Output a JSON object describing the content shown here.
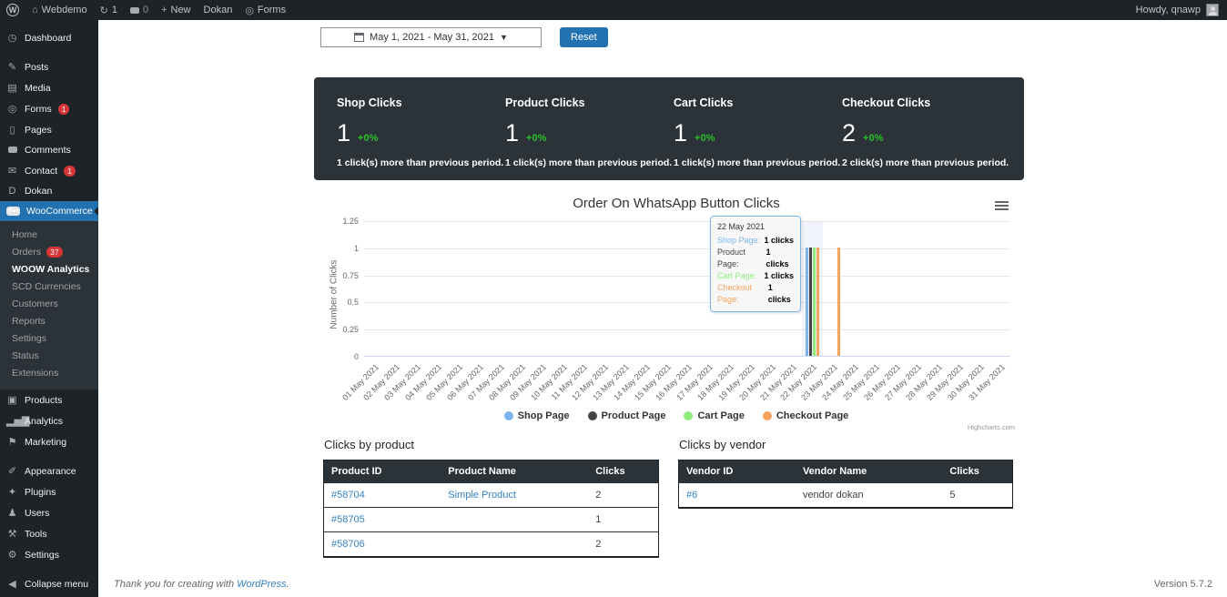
{
  "admin_bar": {
    "site_name": "Webdemo",
    "updates_count": "1",
    "comments_count": "0",
    "new_label": "New",
    "dokan_label": "Dokan",
    "forms_label": "Forms",
    "howdy": "Howdy, qnawp"
  },
  "sidebar": {
    "icon_glyphs": {
      "dashboard": "◷",
      "posts": "✎",
      "media": "▤",
      "forms": "◎",
      "pages": "▯",
      "comments": "",
      "contact": "✉",
      "dokan": "D",
      "woocommerce": "Woo",
      "products": "▣",
      "analytics": "▂▅▇",
      "marketing": "⚑",
      "appearance": "✐",
      "plugins": "✦",
      "users": "♟",
      "tools": "⚒",
      "settings": "⚙",
      "collapse": "◀"
    },
    "items": [
      {
        "id": "dashboard",
        "label": "Dashboard",
        "icon": "dashboard-icon"
      },
      {
        "id": "posts",
        "label": "Posts",
        "icon": "pushpin-icon",
        "gap_before": true
      },
      {
        "id": "media",
        "label": "Media",
        "icon": "media-icon"
      },
      {
        "id": "forms",
        "label": "Forms",
        "icon": "forms-icon",
        "badge": "1"
      },
      {
        "id": "pages",
        "label": "Pages",
        "icon": "pages-icon"
      },
      {
        "id": "comments",
        "label": "Comments",
        "icon": "comment-bubble-icon"
      },
      {
        "id": "contact",
        "label": "Contact",
        "icon": "mail-icon",
        "badge": "1"
      },
      {
        "id": "dokan",
        "label": "Dokan",
        "icon": "dokan-icon"
      },
      {
        "id": "woocommerce",
        "label": "WooCommerce",
        "icon": "woocommerce-icon",
        "active": true
      },
      {
        "id": "products",
        "label": "Products",
        "icon": "products-icon"
      },
      {
        "id": "analytics",
        "label": "Analytics",
        "icon": "bar-chart-icon"
      },
      {
        "id": "marketing",
        "label": "Marketing",
        "icon": "megaphone-icon"
      },
      {
        "id": "appearance",
        "label": "Appearance",
        "icon": "brush-icon",
        "gap_before": true
      },
      {
        "id": "plugins",
        "label": "Plugins",
        "icon": "plugin-icon"
      },
      {
        "id": "users",
        "label": "Users",
        "icon": "user-icon"
      },
      {
        "id": "tools",
        "label": "Tools",
        "icon": "tools-icon"
      },
      {
        "id": "settings",
        "label": "Settings",
        "icon": "gear-icon"
      },
      {
        "id": "collapse",
        "label": "Collapse menu",
        "icon": "collapse-arrow-icon",
        "gap_before": true
      }
    ],
    "submenu": [
      {
        "id": "home",
        "label": "Home"
      },
      {
        "id": "orders",
        "label": "Orders",
        "badge": "37"
      },
      {
        "id": "woow-analytics",
        "label": "WOOW Analytics",
        "current": true
      },
      {
        "id": "scd-currencies",
        "label": "SCD Currencies"
      },
      {
        "id": "customers",
        "label": "Customers"
      },
      {
        "id": "reports",
        "label": "Reports"
      },
      {
        "id": "settings",
        "label": "Settings"
      },
      {
        "id": "status",
        "label": "Status"
      },
      {
        "id": "extensions",
        "label": "Extensions"
      }
    ]
  },
  "toolbar": {
    "date_range": "May 1, 2021 - May 31, 2021",
    "reset_label": "Reset"
  },
  "stats": [
    {
      "label": "Shop Clicks",
      "value": "1",
      "delta": "+0%",
      "note": "1 click(s) more than previous period."
    },
    {
      "label": "Product Clicks",
      "value": "1",
      "delta": "+0%",
      "note": "1 click(s) more than previous period."
    },
    {
      "label": "Cart Clicks",
      "value": "1",
      "delta": "+0%",
      "note": "1 click(s) more than previous period."
    },
    {
      "label": "Checkout Clicks",
      "value": "2",
      "delta": "+0%",
      "note": "2 click(s) more than previous period."
    }
  ],
  "chart_data": {
    "type": "bar",
    "title": "Order On WhatsApp Button Clicks",
    "xlabel": "",
    "ylabel": "Number of Clicks",
    "ylim": [
      0,
      1.25
    ],
    "yticks": [
      0,
      0.25,
      0.5,
      0.75,
      1,
      1.25
    ],
    "grid": true,
    "legend_position": "bottom",
    "categories": [
      "01 May 2021",
      "02 May 2021",
      "03 May 2021",
      "04 May 2021",
      "05 May 2021",
      "06 May 2021",
      "07 May 2021",
      "08 May 2021",
      "09 May 2021",
      "10 May 2021",
      "11 May 2021",
      "12 May 2021",
      "13 May 2021",
      "14 May 2021",
      "15 May 2021",
      "16 May 2021",
      "17 May 2021",
      "18 May 2021",
      "19 May 2021",
      "20 May 2021",
      "21 May 2021",
      "22 May 2021",
      "23 May 2021",
      "24 May 2021",
      "25 May 2021",
      "26 May 2021",
      "27 May 2021",
      "28 May 2021",
      "29 May 2021",
      "30 May 2021",
      "31 May 2021"
    ],
    "series": [
      {
        "name": "Shop Page",
        "color": "#7cb5ec",
        "values": [
          0,
          0,
          0,
          0,
          0,
          0,
          0,
          0,
          0,
          0,
          0,
          0,
          0,
          0,
          0,
          0,
          0,
          0,
          0,
          0,
          0,
          1,
          0,
          0,
          0,
          0,
          0,
          0,
          0,
          0,
          0
        ]
      },
      {
        "name": "Product Page",
        "color": "#434348",
        "values": [
          0,
          0,
          0,
          0,
          0,
          0,
          0,
          0,
          0,
          0,
          0,
          0,
          0,
          0,
          0,
          0,
          0,
          0,
          0,
          0,
          0,
          1,
          0,
          0,
          0,
          0,
          0,
          0,
          0,
          0,
          0
        ]
      },
      {
        "name": "Cart Page",
        "color": "#90ed7d",
        "values": [
          0,
          0,
          0,
          0,
          0,
          0,
          0,
          0,
          0,
          0,
          0,
          0,
          0,
          0,
          0,
          0,
          0,
          0,
          0,
          0,
          0,
          1,
          0,
          0,
          0,
          0,
          0,
          0,
          0,
          0,
          0
        ]
      },
      {
        "name": "Checkout Page",
        "color": "#f7a35c",
        "values": [
          0,
          0,
          0,
          0,
          0,
          0,
          0,
          0,
          0,
          0,
          0,
          0,
          0,
          0,
          0,
          0,
          0,
          0,
          0,
          0,
          0,
          1,
          1,
          0,
          0,
          0,
          0,
          0,
          0,
          0,
          0
        ]
      }
    ],
    "tooltip": {
      "category_index": 21,
      "title": "22 May 2021",
      "rows": [
        {
          "name": "Shop Page:",
          "value": "1 clicks"
        },
        {
          "name": "Product Page:",
          "value": "1 clicks"
        },
        {
          "name": "Cart Page:",
          "value": "1 clicks"
        },
        {
          "name": "Checkout Page:",
          "value": "1 clicks"
        }
      ]
    },
    "credit": "Highcharts.com"
  },
  "tables": {
    "product": {
      "title": "Clicks by product",
      "columns": [
        "Product ID",
        "Product Name",
        "Clicks"
      ],
      "rows": [
        [
          {
            "text": "#58704",
            "link": true
          },
          {
            "text": "Simple Product",
            "link": true
          },
          {
            "text": "2"
          }
        ],
        [
          {
            "text": "#58705",
            "link": true
          },
          {
            "text": ""
          },
          {
            "text": "1"
          }
        ],
        [
          {
            "text": "#58706",
            "link": true
          },
          {
            "text": ""
          },
          {
            "text": "2"
          }
        ]
      ]
    },
    "vendor": {
      "title": "Clicks by vendor",
      "columns": [
        "Vendor ID",
        "Vendor Name",
        "Clicks"
      ],
      "rows": [
        [
          {
            "text": "#6",
            "link": true
          },
          {
            "text": "vendor dokan"
          },
          {
            "text": "5"
          }
        ]
      ]
    }
  },
  "footer": {
    "thanks_prefix": "Thank you for creating with ",
    "wordpress_link": "WordPress",
    "thanks_suffix": ".",
    "version": "Version 5.7.2"
  },
  "colors": {
    "accent_blue": "#2271b1",
    "positive_green": "#2abf2a",
    "badge_red": "#d63638",
    "panel_dark": "#2c3338",
    "link_blue": "#3582c4"
  }
}
